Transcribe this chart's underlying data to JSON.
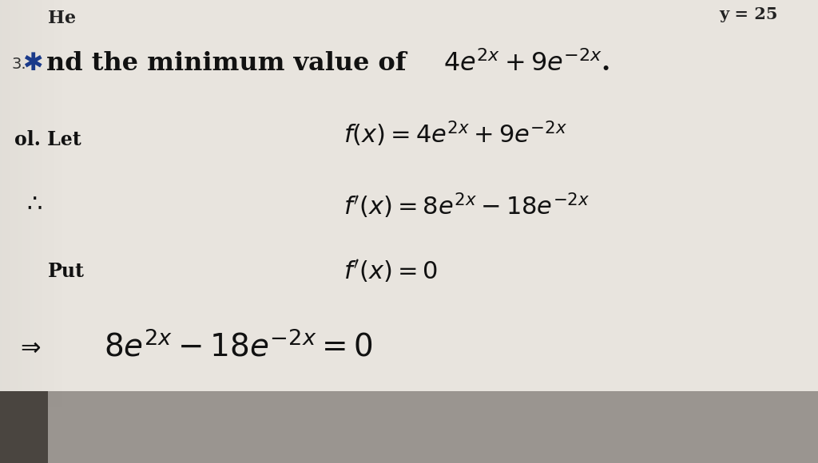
{
  "bg_color": "#b8b0a8",
  "page_color": "#e8e4de",
  "page_color2": "#dedad4",
  "text_color": "#111111",
  "blue_color": "#1a3a8a",
  "top_cut_text": "He",
  "top_right_cut": "y = 25",
  "title_prefix": "nd the minimum value of ",
  "title_math": "$4e^{2x} + 9e^{-2x}$.",
  "sol_label": "ol. Let",
  "therefore_label": "∴",
  "put_label": "Put",
  "implies_label": "⇒",
  "line1_formula": "$f(x) = 4e^{2x} + 9e^{-2x}$",
  "line2_formula": "$f'(x) = 8e^{2x} - 18e^{-2x}$",
  "line3_formula": "$f'(x) = 0$",
  "line4_formula": "$8e^{2x} - 18e^{-2x} = 0$",
  "bottom_gray": "#9a9590"
}
